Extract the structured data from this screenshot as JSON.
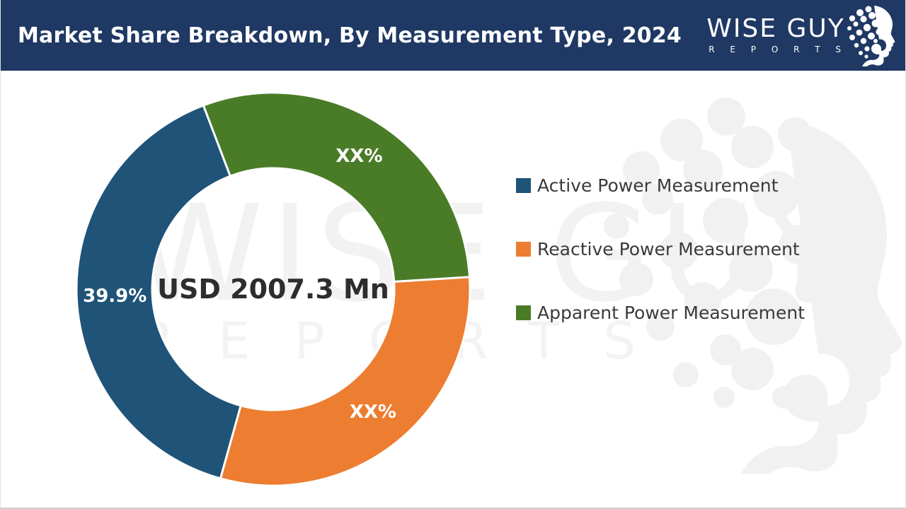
{
  "header": {
    "title": "Market Share Breakdown, By Measurement Type, 2024",
    "logo": {
      "line1": "WISE GUY",
      "line2": "R E P O R T S"
    }
  },
  "watermark": {
    "line1": "WISE GUY",
    "line2": "REPORTS"
  },
  "chart_data": {
    "type": "pie",
    "subtype": "donut",
    "title": "Market Share Breakdown, By Measurement Type, 2024",
    "center_label": "USD 2007.3 Mn",
    "start_angle_clock_deg": -20.8,
    "slices": [
      {
        "name": "Apparent Power Measurement",
        "value": 29.8,
        "display_label": "XX%",
        "color": "#4a7c28"
      },
      {
        "name": "Reactive Power Measurement",
        "value": 30.3,
        "display_label": "XX%",
        "color": "#ed7d31"
      },
      {
        "name": "Active Power Measurement",
        "value": 39.9,
        "display_label": "39.9%",
        "color": "#1f5378"
      }
    ],
    "legend": {
      "position": "right",
      "items": [
        {
          "label": "Active Power Measurement",
          "color": "#1f5378"
        },
        {
          "label": "Reactive Power Measurement",
          "color": "#ed7d31"
        },
        {
          "label": "Apparent Power Measurement",
          "color": "#4a7c28"
        }
      ]
    }
  },
  "colors": {
    "header_bg": "#1f3864",
    "active_blue": "#1f5378",
    "reactive_orange": "#ed7d31",
    "apparent_green": "#4a7c28",
    "watermark_gray": "#f2f2f2"
  }
}
